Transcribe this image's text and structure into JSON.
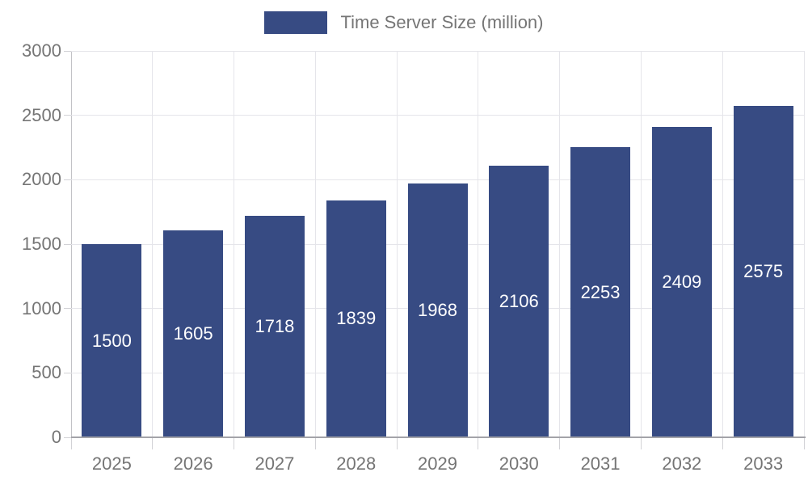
{
  "chart_data": {
    "type": "bar",
    "title": "Time Server Size (million)",
    "categories": [
      "2025",
      "2026",
      "2027",
      "2028",
      "2029",
      "2030",
      "2031",
      "2032",
      "2033"
    ],
    "series": [
      {
        "name": "Time Server Size (million)",
        "values": [
          1500,
          1605,
          1718,
          1839,
          1968,
          2106,
          2253,
          2409,
          2575
        ]
      }
    ],
    "xlabel": "",
    "ylabel": "",
    "ylim": [
      0,
      3000
    ],
    "yticks": [
      0,
      500,
      1000,
      1500,
      2000,
      2500,
      3000
    ],
    "grid": true,
    "legend_position": "top-center",
    "value_labels": "inside-center",
    "colors": {
      "bar": "#374B83",
      "grid": "#e5e5ea",
      "axis": "#a3a3a8",
      "tick_mark": "#d2d2d6",
      "axis_text": "#757575",
      "value_label_text": "#ffffff",
      "background": "#ffffff"
    }
  }
}
